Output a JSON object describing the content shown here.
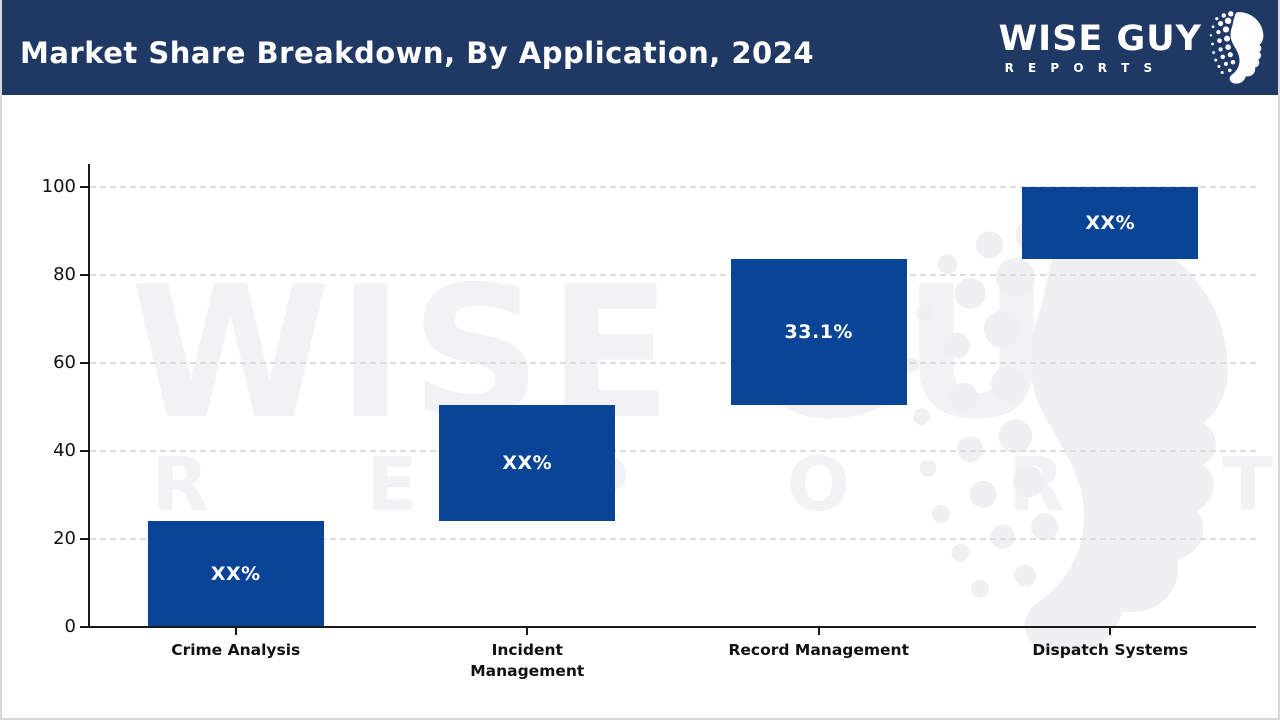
{
  "header": {
    "title": "Market Share Breakdown, By Application, 2024",
    "logo": {
      "wordmark": "WISE GUY",
      "subtext": "R E P O R T S"
    }
  },
  "watermark": {
    "wordmark": "WISE GUY",
    "subtext": "R E P O R T S"
  },
  "colors": {
    "header_bg": "#1f3864",
    "bar": "#0a4496",
    "grid": "#dcdcdc",
    "axis": "#1a1a1a",
    "bar_label": "#ffffff",
    "watermark": "#f2f2f4"
  },
  "chart_data": {
    "type": "bar",
    "subtype": "waterfall",
    "title": "Market Share Breakdown, By Application, 2024",
    "xlabel": "",
    "ylabel": "",
    "ylim": [
      0,
      100
    ],
    "yticks": [
      0,
      20,
      40,
      60,
      80,
      100
    ],
    "grid": "dashed-horizontal",
    "legend": "none",
    "categories": [
      "Crime Analysis",
      "Incident Management",
      "Record Management",
      "Dispatch Systems"
    ],
    "bars": [
      {
        "category": "Crime Analysis",
        "tick_lines": [
          "Crime Analysis"
        ],
        "start": 0,
        "end": 24.1,
        "label": "XX%"
      },
      {
        "category": "Incident Management",
        "tick_lines": [
          "Incident",
          "Management"
        ],
        "start": 24.1,
        "end": 50.5,
        "label": "XX%"
      },
      {
        "category": "Record Management",
        "tick_lines": [
          "Record Management"
        ],
        "start": 50.5,
        "end": 83.6,
        "label": "33.1%"
      },
      {
        "category": "Dispatch Systems",
        "tick_lines": [
          "Dispatch Systems"
        ],
        "start": 83.6,
        "end": 100,
        "label": "XX%"
      }
    ]
  }
}
